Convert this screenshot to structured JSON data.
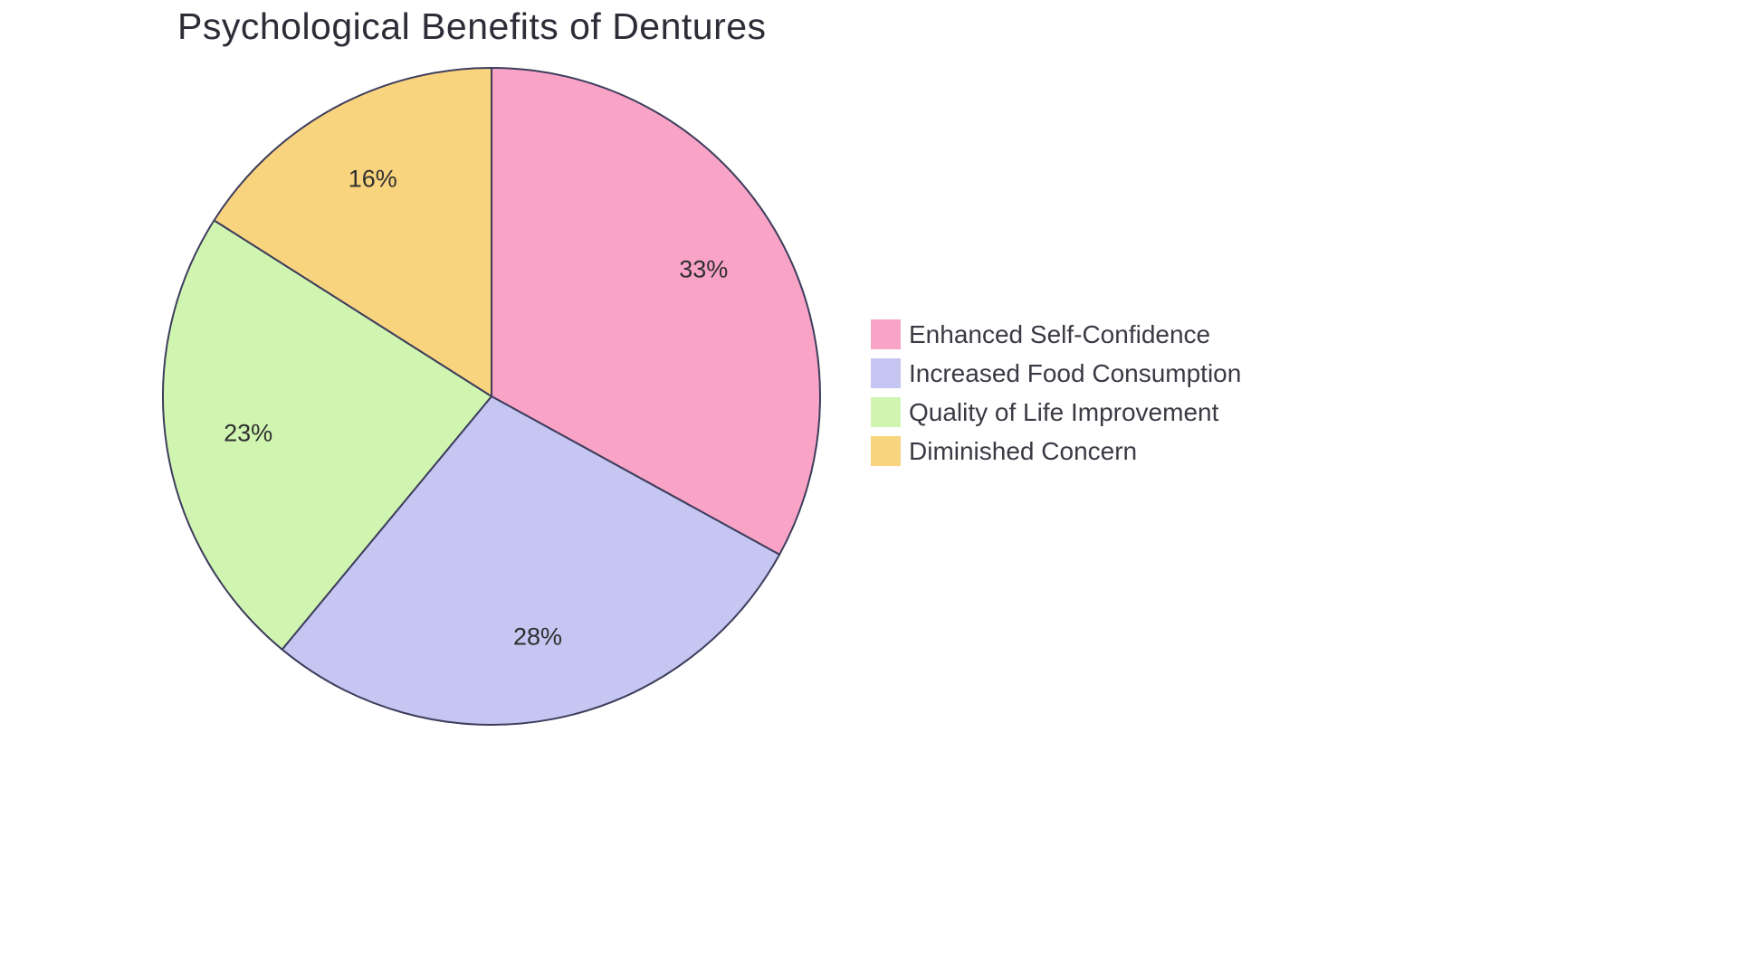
{
  "title": "Psychological Benefits of Dentures",
  "chart_data": {
    "type": "pie",
    "title": "Psychological Benefits of Dentures",
    "labels": [
      "Enhanced Self-Confidence",
      "Increased Food Consumption",
      "Quality of Life Improvement",
      "Diminished Concern"
    ],
    "values": [
      33,
      28,
      23,
      16
    ],
    "unit": "%",
    "slice_labels": [
      "33%",
      "28%",
      "23%",
      "16%"
    ],
    "colors": [
      "#F9A3C7",
      "#C5C6F2",
      "#D0F5B1",
      "#F9D47F"
    ],
    "stroke_color": "#3D3D5C",
    "background": "#FFFFFF",
    "legend_position": "right",
    "start_angle_deg": 0,
    "direction": "clockwise"
  }
}
